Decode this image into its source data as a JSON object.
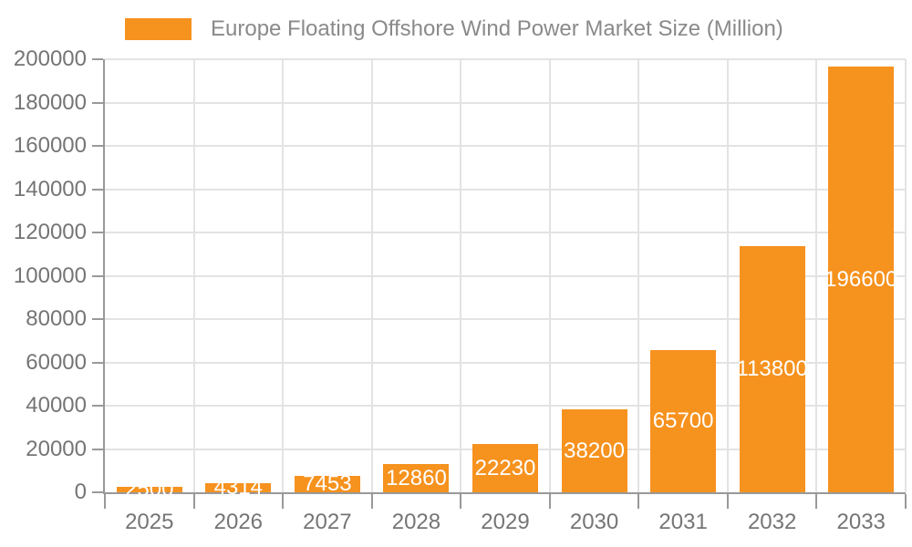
{
  "chart_data": {
    "type": "bar",
    "title": "Europe Floating Offshore Wind Power Market Size (Million)",
    "legend": {
      "label": "Europe Floating Offshore Wind Power Market Size (Million)",
      "position": "top"
    },
    "categories": [
      "2025",
      "2026",
      "2027",
      "2028",
      "2029",
      "2030",
      "2031",
      "2032",
      "2033"
    ],
    "values": [
      2500,
      4314,
      7453,
      12860,
      22230,
      38200,
      65700,
      113800,
      196600
    ],
    "xlabel": "",
    "ylabel": "",
    "ylim": [
      0,
      200000
    ],
    "ytick_step": 20000,
    "grid": true,
    "colors": {
      "bar": "#F6921E",
      "bar_label_text": "#FFFFFF",
      "axis_line": "#999999",
      "grid_line": "#E3E3E3",
      "axis_text": "#757575",
      "legend_text": "#8A8A8A",
      "background": "#FFFFFF"
    }
  }
}
